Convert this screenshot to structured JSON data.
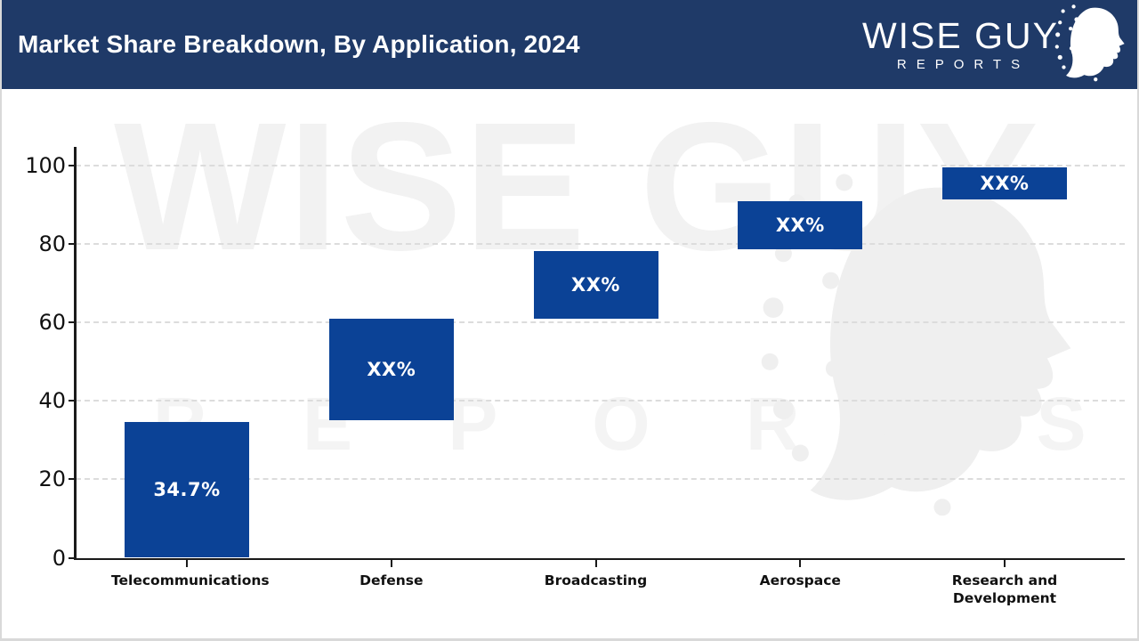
{
  "header": {
    "title": "Market Share Breakdown, By Application, 2024",
    "logo": {
      "line1": "WISE GUY",
      "line2": "REPORTS",
      "icon": "dotted-head-profile"
    }
  },
  "watermark": {
    "line1": "WISE GUY",
    "line2": "R E P O R T S",
    "icon": "dotted-head-profile"
  },
  "colors": {
    "header_bg": "#1f3a68",
    "bar": "#0b4296",
    "bar_label": "#ffffff",
    "axis": "#1a1a1a",
    "grid": "#dcdcdc",
    "watermark_text": "#f2f2f2"
  },
  "chart_data": {
    "type": "bar",
    "subtype": "waterfall",
    "title": "Market Share Breakdown, By Application, 2024",
    "categories": [
      "Telecommunications",
      "Defense",
      "Broadcasting",
      "Aerospace",
      "Research and Development"
    ],
    "segments": [
      {
        "category": "Telecommunications",
        "start": 0,
        "end": 34.7,
        "label": "34.7%"
      },
      {
        "category": "Defense",
        "start": 35,
        "end": 61,
        "label": "XX%"
      },
      {
        "category": "Broadcasting",
        "start": 61,
        "end": 78.2,
        "label": "XX%"
      },
      {
        "category": "Aerospace",
        "start": 78.7,
        "end": 91,
        "label": "XX%"
      },
      {
        "category": "Research and Development",
        "start": 91.3,
        "end": 99.6,
        "label": "XX%"
      }
    ],
    "ylim": [
      0,
      100
    ],
    "yticks": [
      0,
      20,
      40,
      60,
      80,
      100
    ],
    "xlabel": "",
    "ylabel": "",
    "grid": "dashed-horizontal",
    "legend": "none"
  }
}
